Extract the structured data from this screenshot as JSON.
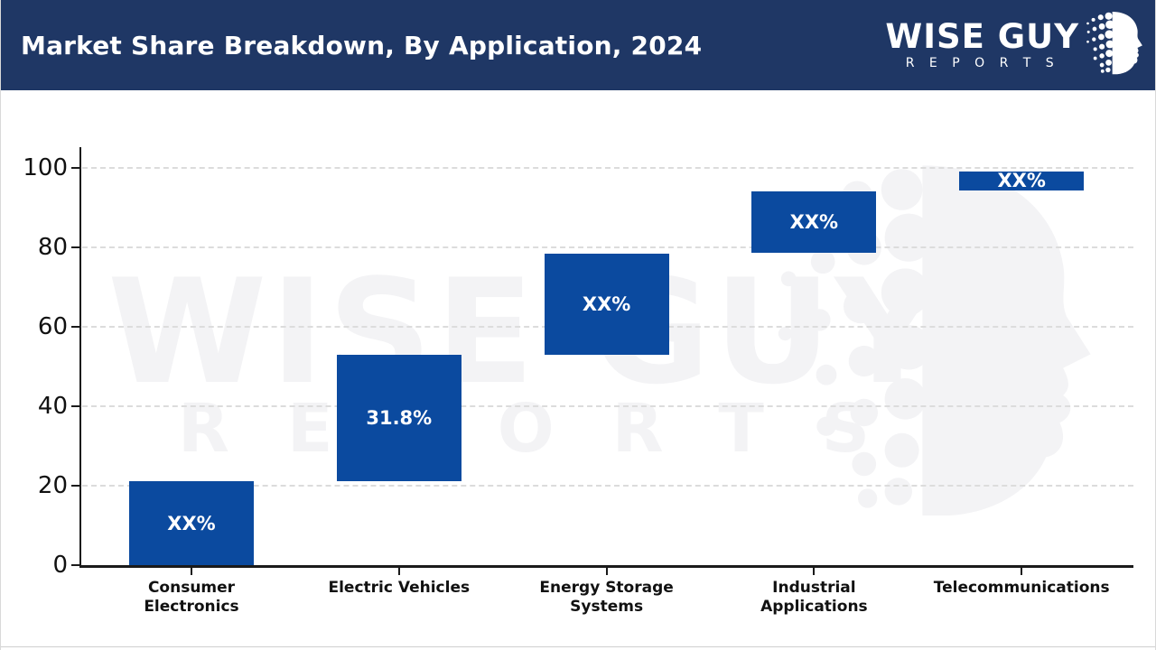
{
  "header": {
    "title": "Market Share Breakdown, By Application, 2024",
    "logo": {
      "brand_top": "WISE GUY",
      "brand_bottom": "REPORTS",
      "face_icon": "dotted-face-profile"
    }
  },
  "watermark": {
    "line1": "WISE GUY",
    "line2": "REPORTS",
    "face_icon": "dotted-face-profile"
  },
  "colors": {
    "header_bg": "#1f3765",
    "bar": "#0b4a9f",
    "bar_label": "#ffffff",
    "gridline": "#dcdcdc",
    "axis": "#1a1a1a",
    "watermark": "#f3f3f5"
  },
  "chart_data": {
    "type": "bar",
    "subtype": "waterfall",
    "title": "Market Share Breakdown, By Application, 2024",
    "xlabel": "",
    "ylabel": "",
    "yticks": [
      0,
      20,
      40,
      60,
      80,
      100
    ],
    "ylim": [
      0,
      105
    ],
    "grid": "horizontal-dashed",
    "legend": "none",
    "categories": [
      "Consumer\nElectronics",
      "Electric Vehicles",
      "Energy Storage\nSystems",
      "Industrial\nApplications",
      "Telecommunications"
    ],
    "segments": [
      {
        "category": "Consumer Electronics",
        "start": 0,
        "end": 21.1,
        "label": "XX%"
      },
      {
        "category": "Electric Vehicles",
        "start": 21.1,
        "end": 52.9,
        "label": "31.8%",
        "value": 31.8
      },
      {
        "category": "Energy Storage Systems",
        "start": 53.0,
        "end": 78.3,
        "label": "XX%"
      },
      {
        "category": "Industrial Applications",
        "start": 78.6,
        "end": 94.2,
        "label": "XX%"
      },
      {
        "category": "Telecommunications",
        "start": 94.3,
        "end": 99.2,
        "label": "XX%"
      }
    ]
  }
}
